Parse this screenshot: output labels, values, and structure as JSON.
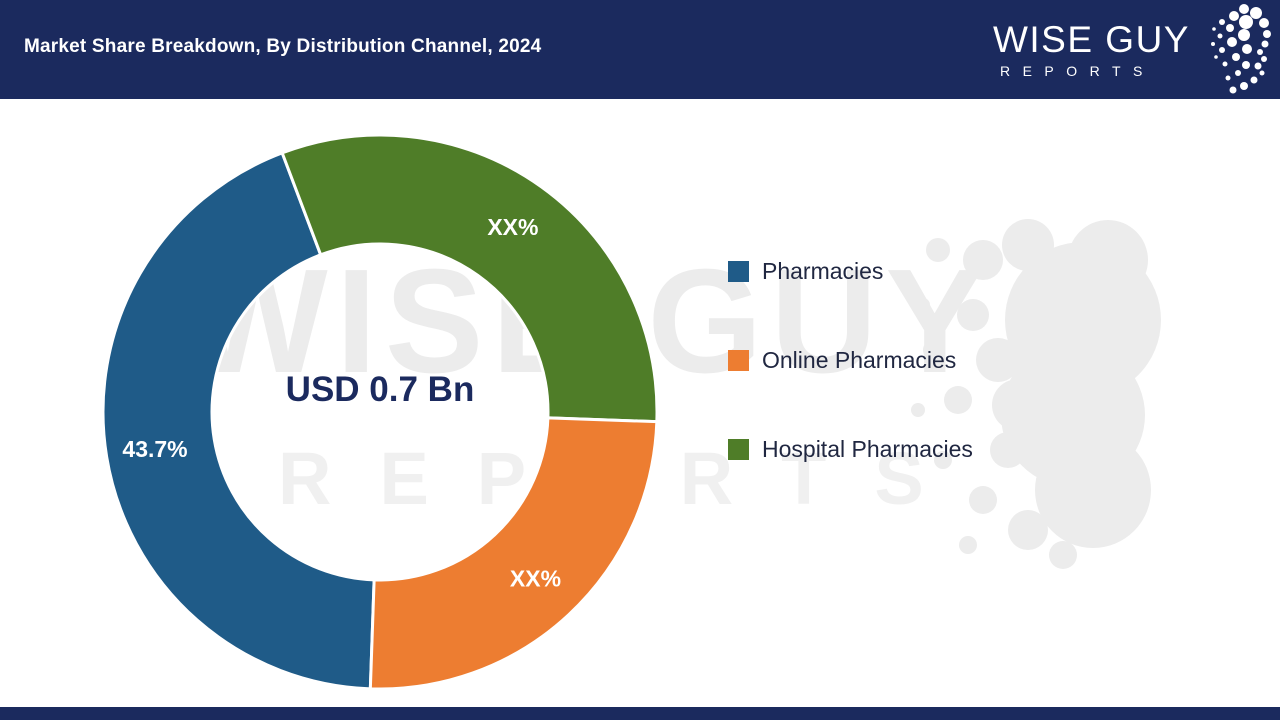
{
  "header": {
    "title": "Market Share Breakdown, By Distribution Channel, 2024",
    "logo": {
      "line1": "WISE GUY",
      "line2": "REPORTS"
    }
  },
  "watermark": {
    "line1": "WISE GUY",
    "line2": "REPORTS"
  },
  "chart_data": {
    "type": "pie",
    "subtype": "donut",
    "title": "Market Share Breakdown, By Distribution Channel, 2024",
    "center_label": "USD 0.7 Bn",
    "start_rotation_deg": 182,
    "legend_position": "right",
    "segments": [
      {
        "name": "Pharmacies",
        "display_label": "43.7%",
        "value_pct": 43.7,
        "color": "#1f5b88"
      },
      {
        "name": "Hospital Pharmacies",
        "display_label": "XX%",
        "value_pct": 31.3,
        "color": "#4f7d28"
      },
      {
        "name": "Online Pharmacies",
        "display_label": "XX%",
        "value_pct": 25.0,
        "color": "#ed7d31"
      }
    ]
  },
  "legend": {
    "items": [
      {
        "label": "Pharmacies",
        "color": "#1f5b88"
      },
      {
        "label": "Online Pharmacies",
        "color": "#ed7d31"
      },
      {
        "label": "Hospital Pharmacies",
        "color": "#4f7d28"
      }
    ]
  },
  "colors": {
    "header_bg": "#1b2a5e",
    "accent_navy": "#1b2a5e"
  }
}
